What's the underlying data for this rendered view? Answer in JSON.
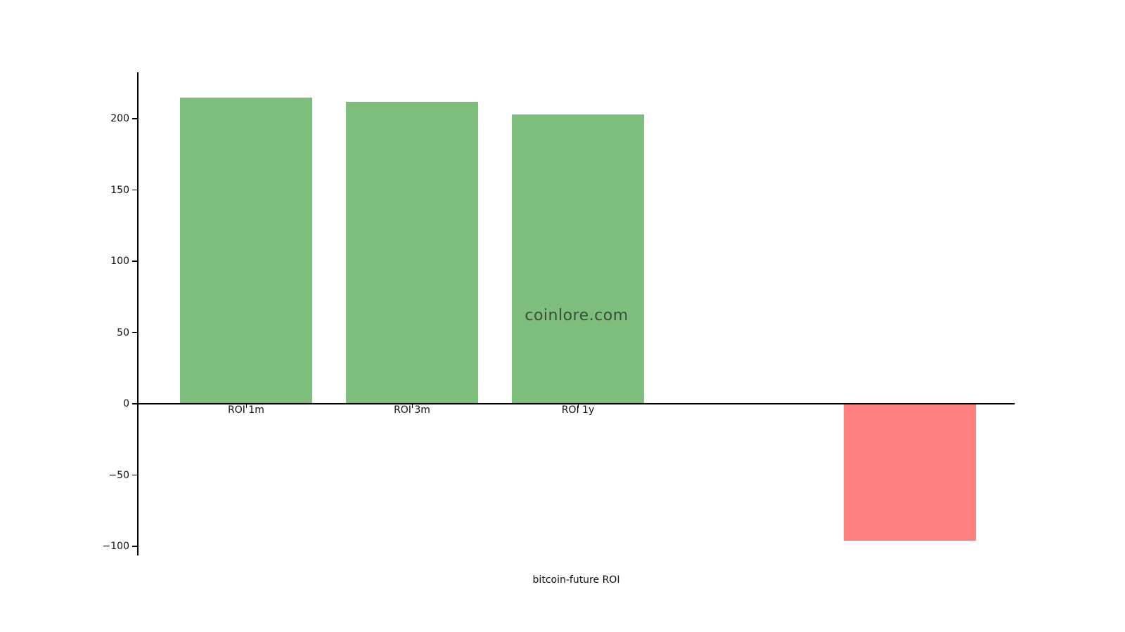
{
  "chart_data": {
    "type": "bar",
    "title": "",
    "xlabel": "bitcoin-future ROI",
    "ylabel": "",
    "watermark": "coinlore.com",
    "grid": false,
    "legend": null,
    "ylim": [
      -106.4,
      232.5
    ],
    "slots_total": 5,
    "categories": [
      "ROI 1m",
      "ROI 3m",
      "ROI 1y",
      "",
      ""
    ],
    "values": [
      215,
      212,
      203,
      0,
      -96
    ],
    "bars": [
      {
        "label": "ROI 1m",
        "value": 215,
        "slot": 0,
        "color_key": "positive",
        "show_tick": true
      },
      {
        "label": "ROI 3m",
        "value": 212,
        "slot": 1,
        "color_key": "positive",
        "show_tick": true
      },
      {
        "label": "ROI 1y",
        "value": 203,
        "slot": 2,
        "color_key": "positive",
        "show_tick": true
      },
      {
        "label": "",
        "value": -96,
        "slot": 4,
        "color_key": "negative",
        "show_tick": false
      }
    ],
    "yticks": [
      {
        "v": 200,
        "label": "200"
      },
      {
        "v": 150,
        "label": "150"
      },
      {
        "v": 100,
        "label": "100"
      },
      {
        "v": 50,
        "label": "50"
      },
      {
        "v": 0,
        "label": "0"
      },
      {
        "v": -50,
        "label": "−50"
      },
      {
        "v": -100,
        "label": "−100"
      }
    ],
    "colors": {
      "positive": "#7ebe7c",
      "negative": "#ff8080",
      "axis": "#000000",
      "text": "#111111",
      "watermark": "rgba(45,45,45,0.8)",
      "background": "#ffffff"
    }
  }
}
